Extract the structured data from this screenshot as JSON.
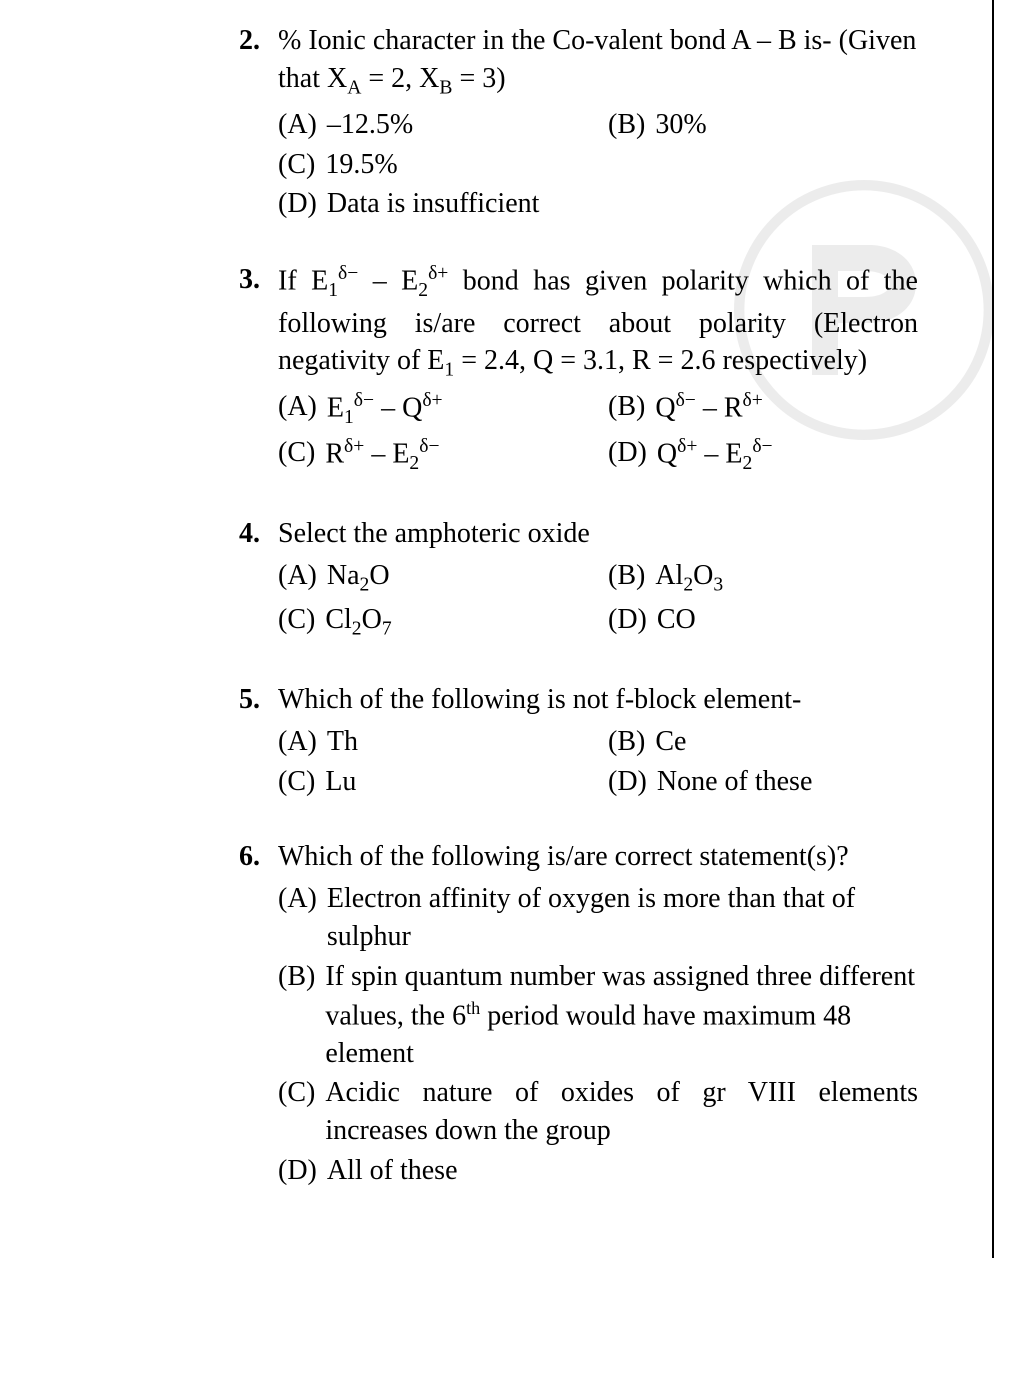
{
  "page": {
    "background_color": "#ffffff",
    "text_color": "#000000",
    "font_family": "Times New Roman",
    "base_fontsize_pt": 21,
    "watermark": {
      "color": "#000000",
      "opacity": 0.07
    }
  },
  "questions": [
    {
      "number": "2.",
      "text_parts": [
        "% Ionic character in the Co-valent bond A – B is- (Given that X",
        "A",
        " = 2, X",
        "B",
        " = 3)"
      ],
      "options": [
        {
          "label": "(A)",
          "html": "–12.5%"
        },
        {
          "label": "(B)",
          "html": "30%"
        },
        {
          "label": "(C)",
          "html": "19.5%"
        },
        {
          "label": "(D)",
          "html": "Data is insufficient",
          "full": true
        }
      ],
      "layout": "2col"
    },
    {
      "number": "3.",
      "text_html": "If E<sub>1</sub><sup>δ−</sup> – E<sub>2</sub><sup>δ+</sup> bond has given polarity which of the following is/are correct about polarity (Electron negativity of E<sub>1</sub> = 2.4, Q = 3.1, R = 2.6 respectively)",
      "options": [
        {
          "label": "(A)",
          "html": "E<sub>1</sub><sup>δ−</sup> – Q<sup>δ+</sup>"
        },
        {
          "label": "(B)",
          "html": "Q<sup>δ−</sup> – R<sup>δ+</sup>"
        },
        {
          "label": "(C)",
          "html": "R<sup>δ+</sup> – E<sub>2</sub><sup>δ−</sup>"
        },
        {
          "label": "(D)",
          "html": "Q<sup>δ+</sup> – E<sub>2</sub><sup>δ−</sup>"
        }
      ],
      "layout": "2col",
      "justify": true
    },
    {
      "number": "4.",
      "text_html": "Select the amphoteric oxide",
      "options": [
        {
          "label": "(A)",
          "html": "Na<sub>2</sub>O"
        },
        {
          "label": "(B)",
          "html": "Al<sub>2</sub>O<sub>3</sub>"
        },
        {
          "label": "(C)",
          "html": "Cl<sub>2</sub>O<sub>7</sub>"
        },
        {
          "label": "(D)",
          "html": "CO"
        }
      ],
      "layout": "2col"
    },
    {
      "number": "5.",
      "text_html": "Which of the following is not f-block element-",
      "options": [
        {
          "label": "(A)",
          "html": "Th"
        },
        {
          "label": "(B)",
          "html": "Ce"
        },
        {
          "label": "(C)",
          "html": "Lu"
        },
        {
          "label": "(D)",
          "html": "None of these"
        }
      ],
      "layout": "2col",
      "justify": true
    },
    {
      "number": "6.",
      "text_html": "Which of the following is/are correct statement(s)?",
      "options": [
        {
          "label": "(A)",
          "html": "Electron affinity of oxygen is more than that of sulphur"
        },
        {
          "label": "(B)",
          "html": "If spin quantum number was assigned three different values, the 6<span class=\"sup-ord\">th</span> period would have maximum 48 element"
        },
        {
          "label": "(C)",
          "html": "Acidic nature of oxides of gr VIII elements increases down the group",
          "justify": true
        },
        {
          "label": "(D)",
          "html": "All of these"
        }
      ],
      "layout": "1col",
      "justify": true
    }
  ]
}
